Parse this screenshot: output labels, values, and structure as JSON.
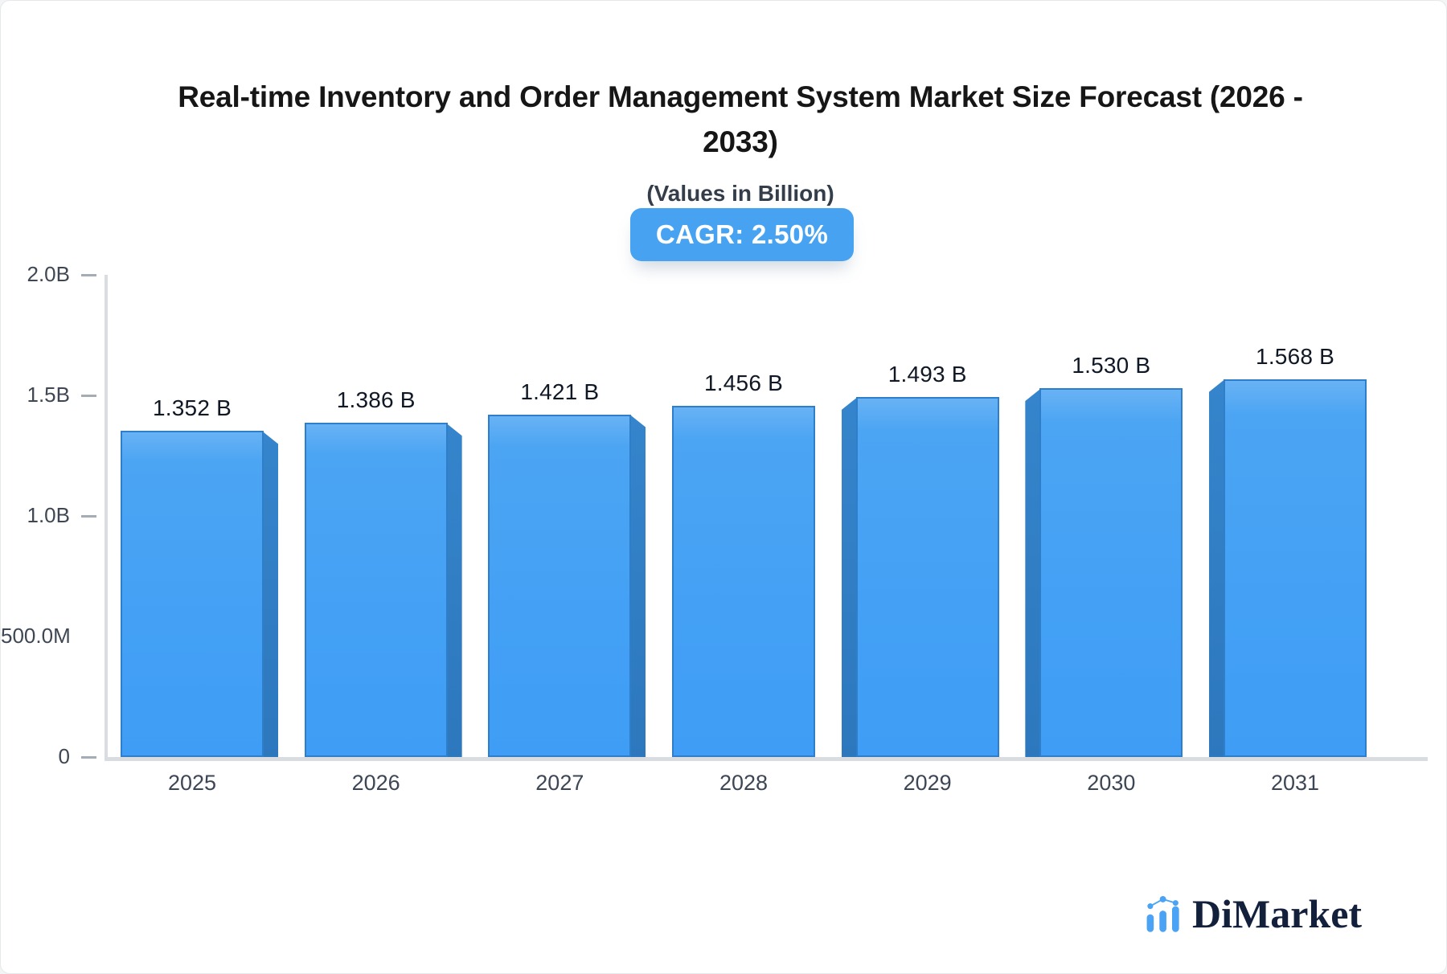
{
  "header": {
    "title_lines": [
      "Real-time Inventory and Order Management System Market Size Forecast (2026 -",
      "2033)"
    ],
    "subtitle": "(Values in Billion)",
    "cagr_badge": "CAGR: 2.50%"
  },
  "chart_data": {
    "type": "bar",
    "title": "Real-time Inventory and Order Management System Market Size Forecast (2026 - 2033)",
    "subtitle": "(Values in Billion)",
    "cagr": "2.50%",
    "categories": [
      "2025",
      "2026",
      "2027",
      "2028",
      "2029",
      "2030",
      "2031"
    ],
    "values": [
      1.352,
      1.386,
      1.421,
      1.456,
      1.493,
      1.53,
      1.568
    ],
    "value_labels": [
      "1.352 B",
      "1.386 B",
      "1.421 B",
      "1.456 B",
      "1.493 B",
      "1.530 B",
      "1.568 B"
    ],
    "xlabel": "",
    "ylabel": "",
    "ylim": [
      0,
      2.0
    ],
    "grid": false,
    "legend": "none",
    "y_ticks": [
      {
        "label": "2.0B",
        "value": 2.0,
        "dash": true
      },
      {
        "label": "1.5B",
        "value": 1.5,
        "dash": true
      },
      {
        "label": "1.0B",
        "value": 1.0,
        "dash": true
      },
      {
        "label": "500.0M",
        "value": 0.5,
        "dash": false
      },
      {
        "label": "0",
        "value": 0.0,
        "dash": true
      }
    ],
    "bar_3d_sides": [
      "right",
      "right",
      "right",
      "none",
      "left",
      "left",
      "left"
    ],
    "colors": {
      "bar_face": "#43a0f5",
      "bar_face_highlight": "#68b2f4",
      "bar_border": "#2e7ec9",
      "bar_side_face": "#2e7bc3",
      "axis_line": "#d9dde1",
      "tick_text": "#3e4753",
      "value_text": "#101826",
      "badge_background": "#47a3f2",
      "badge_text": "#ffffff",
      "logo_blue": "#4aa3f5",
      "logo_navy": "#13203c"
    }
  },
  "footer": {
    "logo_text": "DiMarket"
  }
}
